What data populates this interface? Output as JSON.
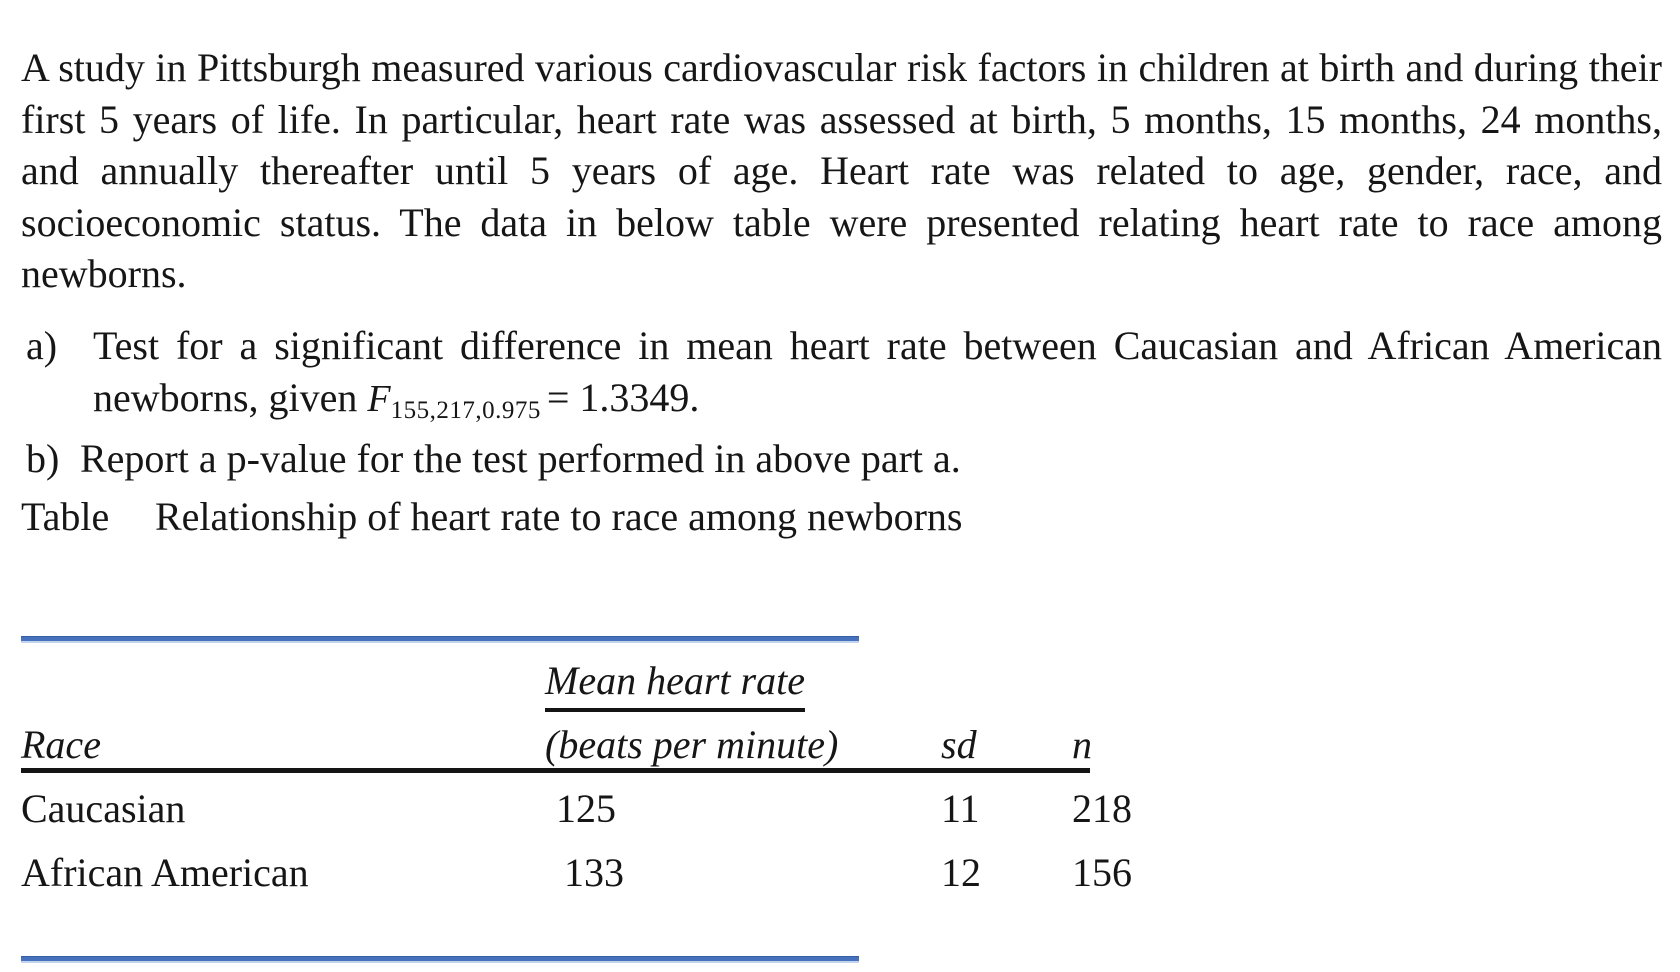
{
  "intro": "A study in Pittsburgh measured various cardiovascular risk factors in children at birth and during their first 5 years of life. In particular, heart rate was assessed at birth, 5 months, 15 months, 24 months, and annually thereafter until 5 years of age. Heart rate was related to age, gender, race, and socioeconomic status. The data in below table were presented relating heart rate to race among newborns.",
  "questions": {
    "a": {
      "marker": "a)",
      "text": "Test for a significant difference in mean heart rate between Caucasian and African American newborns, given ",
      "formula_symbol": "F",
      "formula_subscript": "155,217,0.975",
      "formula_result": "= 1.3349."
    },
    "b": {
      "marker": "b)",
      "text": "Report a p-value for the test performed in above part a."
    }
  },
  "table": {
    "caption_label": "Table",
    "caption_title": "Relationship of heart rate to race among newborns",
    "group_header": "Mean heart rate",
    "columns": [
      "Race",
      "(beats per minute)",
      "sd",
      "n"
    ],
    "rows": [
      {
        "race": "Caucasian",
        "mean_hr": "125",
        "sd": "11",
        "n": "218"
      },
      {
        "race": "African American",
        "mean_hr": "133",
        "sd": "12",
        "n": "156"
      }
    ],
    "accent_color": "#4672bd",
    "text_color": "#161616"
  }
}
